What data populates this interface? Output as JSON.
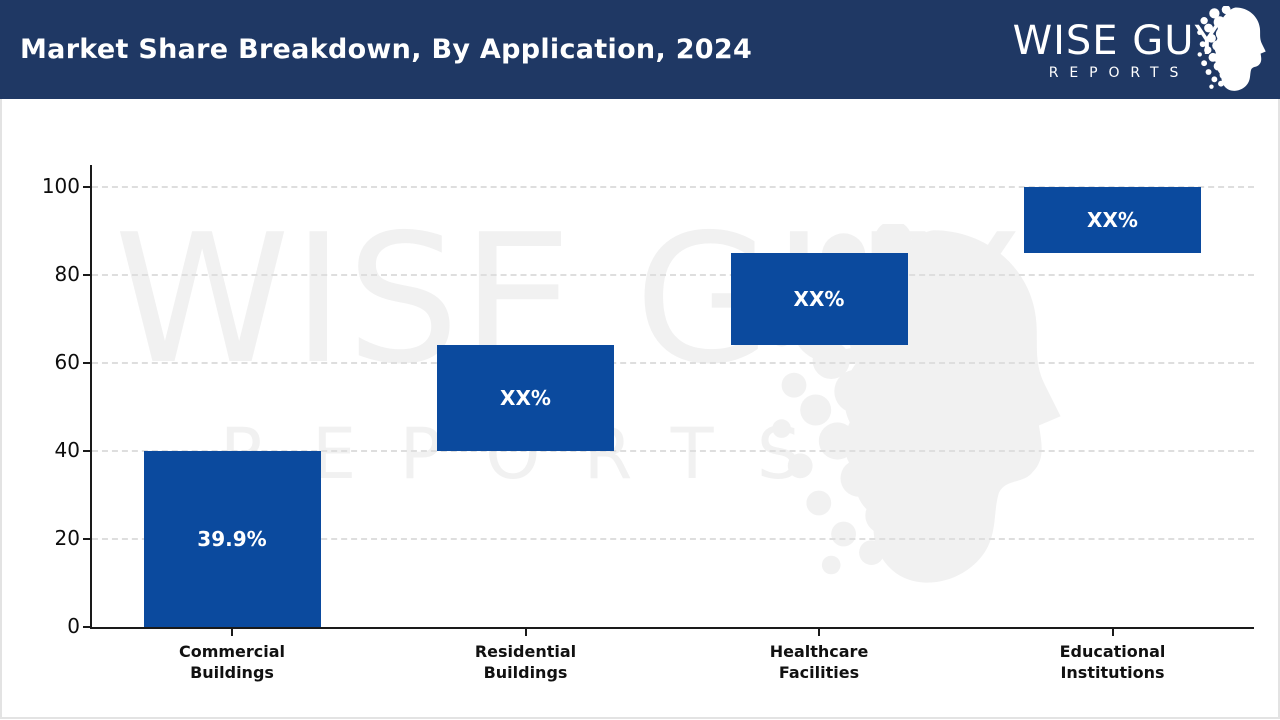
{
  "header": {
    "title": "Market Share Breakdown, By Application, 2024",
    "logo": {
      "line1": "WISE GUY",
      "line2": "REPORTS"
    }
  },
  "watermark": {
    "line1": "WISE GUY",
    "line2": "REPORTS"
  },
  "chart_data": {
    "type": "bar",
    "subtype": "floating-waterfall",
    "title": "Market Share Breakdown, By Application, 2024",
    "categories": [
      {
        "line1": "Commercial",
        "line2": "Buildings"
      },
      {
        "line1": "Residential",
        "line2": "Buildings"
      },
      {
        "line1": "Healthcare",
        "line2": "Facilities"
      },
      {
        "line1": "Educational",
        "line2": "Institutions"
      }
    ],
    "segments": [
      {
        "category": "Commercial Buildings",
        "start": 0,
        "end": 39.9,
        "label": "39.9%"
      },
      {
        "category": "Residential Buildings",
        "start": 39.9,
        "end": 64,
        "label": "XX%"
      },
      {
        "category": "Healthcare Facilities",
        "start": 64,
        "end": 85,
        "label": "XX%"
      },
      {
        "category": "Educational Institutions",
        "start": 85,
        "end": 100,
        "label": "XX%"
      }
    ],
    "xlabel": "",
    "ylabel": "",
    "ylim": [
      0,
      100
    ],
    "yticks": [
      0,
      20,
      40,
      60,
      80,
      100
    ],
    "grid": "horizontal-dashed",
    "legend": null
  },
  "colors": {
    "header_bg": "#1F3864",
    "bar": "#0B4A9E",
    "bar_label": "#ffffff",
    "grid": "#dedede",
    "axis": "#1a1a1a",
    "watermark": "#f1f1f1",
    "border": "#e3e3e3"
  }
}
